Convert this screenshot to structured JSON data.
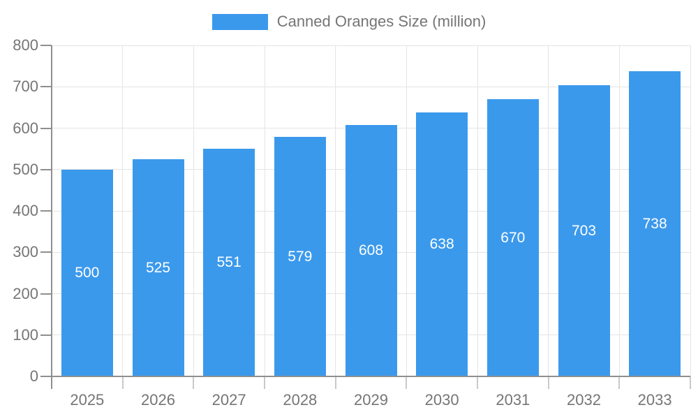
{
  "chart_data": {
    "type": "bar",
    "series_name": "Canned Oranges Size (million)",
    "legend": {
      "position": "top",
      "entries": [
        "Canned Oranges Size (million)"
      ]
    },
    "categories": [
      "2025",
      "2026",
      "2027",
      "2028",
      "2029",
      "2030",
      "2031",
      "2032",
      "2033"
    ],
    "values": [
      500,
      525,
      551,
      579,
      608,
      638,
      670,
      703,
      738
    ],
    "xlabel": "",
    "ylabel": "",
    "ylim": [
      0,
      800
    ],
    "y_tick_step": 100,
    "y_ticks": [
      0,
      100,
      200,
      300,
      400,
      500,
      600,
      700,
      800
    ],
    "grid": true,
    "bar_label_position": "inside-middle",
    "colors": {
      "bar": "#3B99EC",
      "bar_label": "#FFFFFF",
      "axis_line": "#8F8F8F",
      "x_tick": "#C9C9C9",
      "grid_line": "#E4E4E4",
      "tick_label": "#757575",
      "legend_text": "#757575",
      "background": "#FFFFFF"
    }
  }
}
